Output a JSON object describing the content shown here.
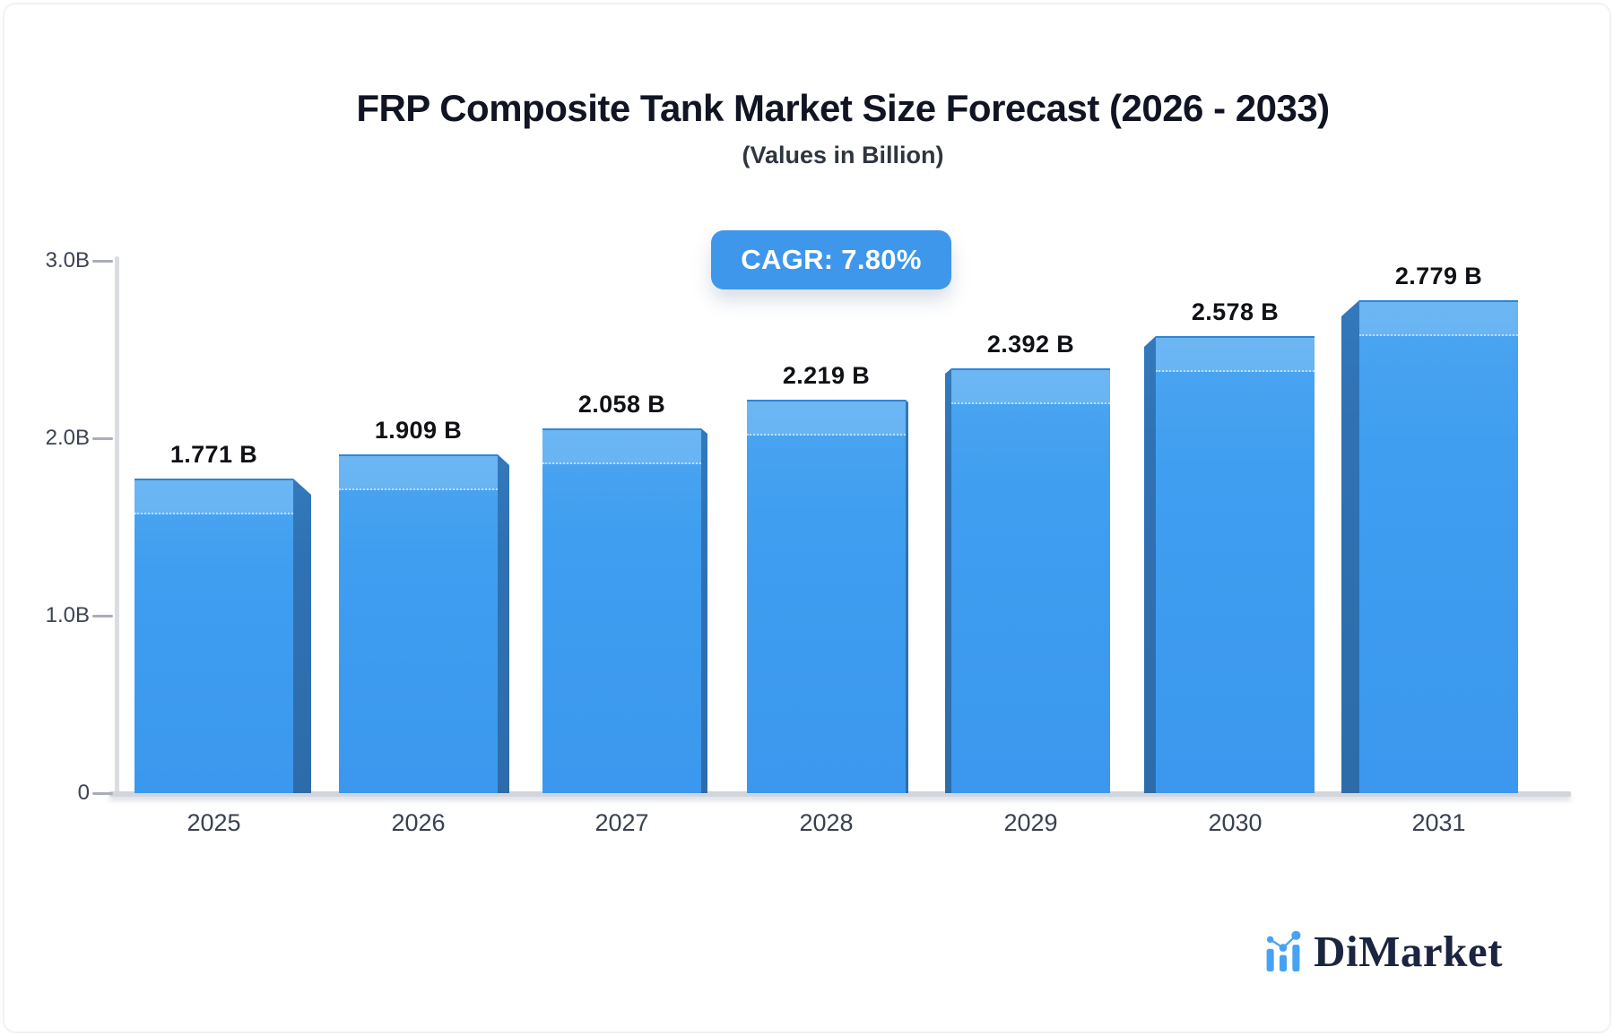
{
  "header": {
    "title": "FRP Composite Tank Market Size Forecast (2026 - 2033)",
    "subtitle": "(Values in Billion)"
  },
  "badge": {
    "label": "CAGR: 7.80%",
    "bg_color": "#3e97ea",
    "text_color": "#ffffff"
  },
  "chart_data": {
    "type": "bar",
    "title": "FRP Composite Tank Market Size Forecast (2026 - 2033)",
    "subtitle": "(Values in Billion)",
    "categories": [
      "2025",
      "2026",
      "2027",
      "2028",
      "2029",
      "2030",
      "2031"
    ],
    "values": [
      1.771,
      1.909,
      2.058,
      2.219,
      2.392,
      2.578,
      2.779
    ],
    "value_labels": [
      "1.771 B",
      "1.909 B",
      "2.058 B",
      "2.219 B",
      "2.392 B",
      "2.578 B",
      "2.779 B"
    ],
    "unit": "Billion",
    "xlabel": "",
    "ylabel": "",
    "ylim": [
      0,
      3
    ],
    "yticks": [
      {
        "value": 0,
        "label": "0"
      },
      {
        "value": 1,
        "label": "1.0B"
      },
      {
        "value": 2,
        "label": "2.0B"
      },
      {
        "value": 3,
        "label": "3.0B"
      }
    ],
    "grid": false,
    "legend": false,
    "style": "3d-perspective-bars",
    "colors": {
      "bar_face": "#3f9ef0",
      "bar_face_highlight": "#5faef2",
      "bar_side": "#2f72b4",
      "axis_line": "#dadde2",
      "baseline": "#d2d6db",
      "tick_dash": "#a9aeb6",
      "tick_text": "#3c4352",
      "value_text": "#0f1115",
      "category_text": "#39414f"
    }
  },
  "logo": {
    "text": "DiMarket",
    "icon": "bar-chart-logo-icon",
    "text_color": "#1b2440",
    "icon_color": "#47a2f4"
  }
}
